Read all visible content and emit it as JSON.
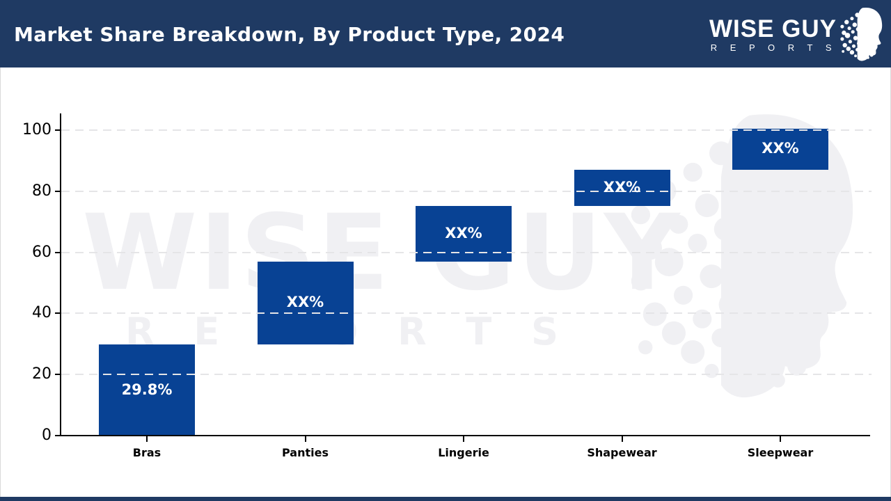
{
  "header": {
    "title": "Market Share Breakdown, By Product Type, 2024",
    "logo": {
      "line1": "WISE GUY",
      "line2": "R E P O R T S",
      "icon": "dotted-head-profile"
    }
  },
  "watermark": {
    "line1": "WISE GUY",
    "line2": "R E P O R T S",
    "icon": "dotted-head-profile"
  },
  "colors": {
    "header_bg": "#1f3a63",
    "footer_bar": "#1f3a63",
    "bar": "#084294",
    "bar_label": "#ffffff",
    "grid": "#e5e5e7",
    "axis": "#000000",
    "watermark": "#f0f0f3"
  },
  "chart_data": {
    "type": "bar",
    "subtype": "waterfall",
    "title": "Market Share Breakdown, By Product Type, 2024",
    "categories": [
      "Bras",
      "Panties",
      "Lingerie",
      "Shapewear",
      "Sleepwear"
    ],
    "segments": [
      {
        "category": "Bras",
        "start": 0,
        "end": 29.8,
        "label": "29.8%"
      },
      {
        "category": "Panties",
        "start": 29.8,
        "end": 57.0,
        "label": "XX%"
      },
      {
        "category": "Lingerie",
        "start": 57.0,
        "end": 75.2,
        "label": "XX%"
      },
      {
        "category": "Shapewear",
        "start": 75.2,
        "end": 87.0,
        "label": "XX%"
      },
      {
        "category": "Sleepwear",
        "start": 87.0,
        "end": 100.5,
        "label": "XX%"
      }
    ],
    "xlabel": "",
    "ylabel": "",
    "ylim": [
      0,
      105
    ],
    "yticks": [
      0,
      20,
      40,
      60,
      80,
      100
    ],
    "grid": "dashed-horizontal",
    "legend": "none"
  }
}
